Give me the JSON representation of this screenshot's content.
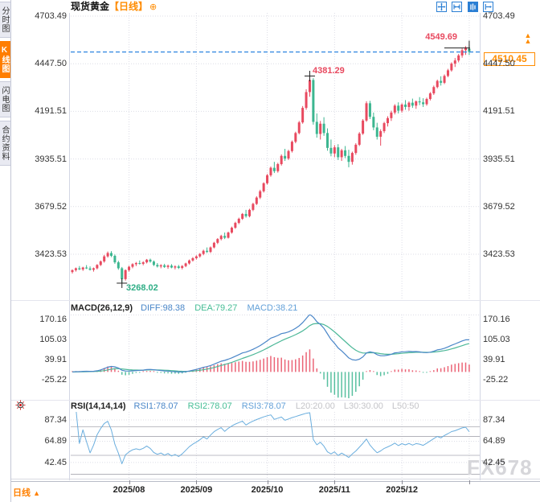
{
  "sidebar": {
    "tabs": [
      {
        "label": "分时图",
        "selected": false
      },
      {
        "label": "K线图",
        "selected": true
      },
      {
        "label": "闪电图",
        "selected": false
      },
      {
        "label": "合约资料",
        "selected": false
      }
    ]
  },
  "header": {
    "title": "现货黄金",
    "period_tag": "【日线】",
    "toolbar_icons": [
      "crosshair",
      "fit-horizontal",
      "candlestick-view",
      "pan-right"
    ]
  },
  "icons": {
    "collapse": "⊕",
    "up_marker": "▲",
    "dropdown_up": "▲"
  },
  "footer": {
    "period_label": "日线"
  },
  "watermark": "FX678",
  "colors": {
    "up": "#e8495f",
    "down": "#3cb690",
    "accent_orange": "#ff8c00",
    "toolbar_blue": "#2b7fd4",
    "last_price_line": "#2e86e0",
    "diff_line": "#4a86c8",
    "dea_line": "#4db898",
    "rsi_line": "#6aaede",
    "grid_dotted": "#dcdde6",
    "rsi_levels": "#a8a8b0"
  },
  "chart_data": {
    "type": "candlestick",
    "title": "现货黄金 日线",
    "x_axis": {
      "labels": [
        "2025/08",
        "2025/09",
        "2025/10",
        "2025/11",
        "2025/12"
      ],
      "day_index": [
        16,
        35,
        55,
        74,
        93
      ],
      "extra_tick_day": 112
    },
    "price_axis": {
      "ticks": [
        4703.49,
        4447.5,
        4191.51,
        3935.51,
        3679.52,
        3423.53
      ]
    },
    "annotations": {
      "recent_high": {
        "text": "4549.69",
        "value": 4549.69,
        "day": 112
      },
      "oct_high": {
        "text": "4381.29",
        "value": 4381.29,
        "day": 67
      },
      "aug_low": {
        "text": "3268.02",
        "value": 3268.02,
        "day": 14
      },
      "last_price": {
        "text": "4510.45",
        "value": 4510.45
      }
    },
    "candles": [
      [
        3328,
        3342,
        3320,
        3338
      ],
      [
        3338,
        3352,
        3330,
        3348
      ],
      [
        3348,
        3360,
        3338,
        3342
      ],
      [
        3342,
        3356,
        3334,
        3352
      ],
      [
        3352,
        3365,
        3344,
        3347
      ],
      [
        3347,
        3358,
        3336,
        3340
      ],
      [
        3340,
        3352,
        3330,
        3348
      ],
      [
        3348,
        3370,
        3342,
        3366
      ],
      [
        3366,
        3390,
        3360,
        3385
      ],
      [
        3385,
        3420,
        3378,
        3412
      ],
      [
        3412,
        3438,
        3405,
        3430
      ],
      [
        3430,
        3440,
        3408,
        3415
      ],
      [
        3415,
        3422,
        3372,
        3380
      ],
      [
        3380,
        3388,
        3340,
        3348
      ],
      [
        3348,
        3355,
        3268.02,
        3290
      ],
      [
        3290,
        3342,
        3282,
        3338
      ],
      [
        3338,
        3362,
        3330,
        3356
      ],
      [
        3356,
        3375,
        3348,
        3370
      ],
      [
        3370,
        3382,
        3360,
        3376
      ],
      [
        3376,
        3390,
        3368,
        3372
      ],
      [
        3372,
        3386,
        3364,
        3380
      ],
      [
        3380,
        3398,
        3374,
        3394
      ],
      [
        3394,
        3400,
        3378,
        3384
      ],
      [
        3384,
        3390,
        3360,
        3366
      ],
      [
        3366,
        3376,
        3352,
        3358
      ],
      [
        3358,
        3370,
        3348,
        3364
      ],
      [
        3364,
        3372,
        3350,
        3355
      ],
      [
        3355,
        3368,
        3345,
        3362
      ],
      [
        3362,
        3370,
        3348,
        3352
      ],
      [
        3352,
        3364,
        3342,
        3358
      ],
      [
        3358,
        3366,
        3344,
        3350
      ],
      [
        3350,
        3365,
        3342,
        3360
      ],
      [
        3360,
        3378,
        3354,
        3374
      ],
      [
        3374,
        3395,
        3368,
        3390
      ],
      [
        3390,
        3408,
        3384,
        3402
      ],
      [
        3402,
        3418,
        3395,
        3412
      ],
      [
        3412,
        3430,
        3405,
        3425
      ],
      [
        3425,
        3448,
        3418,
        3442
      ],
      [
        3442,
        3460,
        3430,
        3436
      ],
      [
        3436,
        3465,
        3430,
        3460
      ],
      [
        3460,
        3490,
        3455,
        3485
      ],
      [
        3485,
        3510,
        3478,
        3505
      ],
      [
        3505,
        3528,
        3498,
        3522
      ],
      [
        3522,
        3540,
        3505,
        3512
      ],
      [
        3512,
        3545,
        3508,
        3540
      ],
      [
        3540,
        3572,
        3534,
        3566
      ],
      [
        3566,
        3598,
        3560,
        3592
      ],
      [
        3592,
        3620,
        3585,
        3614
      ],
      [
        3614,
        3645,
        3608,
        3640
      ],
      [
        3640,
        3662,
        3620,
        3628
      ],
      [
        3628,
        3668,
        3622,
        3662
      ],
      [
        3662,
        3700,
        3655,
        3694
      ],
      [
        3694,
        3735,
        3688,
        3728
      ],
      [
        3728,
        3770,
        3720,
        3762
      ],
      [
        3762,
        3810,
        3755,
        3805
      ],
      [
        3805,
        3855,
        3798,
        3848
      ],
      [
        3848,
        3895,
        3840,
        3888
      ],
      [
        3888,
        3920,
        3860,
        3870
      ],
      [
        3870,
        3915,
        3862,
        3908
      ],
      [
        3908,
        3960,
        3900,
        3952
      ],
      [
        3952,
        3990,
        3925,
        3938
      ],
      [
        3938,
        3985,
        3930,
        3978
      ],
      [
        3978,
        4035,
        3970,
        4028
      ],
      [
        4028,
        4082,
        4020,
        4075
      ],
      [
        4075,
        4140,
        4068,
        4132
      ],
      [
        4132,
        4220,
        4125,
        4210
      ],
      [
        4210,
        4310,
        4200,
        4295
      ],
      [
        4295,
        4381.29,
        4270,
        4360
      ],
      [
        4360,
        4370,
        4120,
        4135
      ],
      [
        4135,
        4180,
        4050,
        4070
      ],
      [
        4070,
        4140,
        4040,
        4125
      ],
      [
        4125,
        4160,
        4060,
        4075
      ],
      [
        4075,
        4100,
        3980,
        3995
      ],
      [
        3995,
        4040,
        3950,
        3965
      ],
      [
        3965,
        4010,
        3945,
        3998
      ],
      [
        3998,
        4015,
        3930,
        3945
      ],
      [
        3945,
        3990,
        3925,
        3982
      ],
      [
        3982,
        4005,
        3940,
        3952
      ],
      [
        3952,
        3985,
        3891,
        3920
      ],
      [
        3920,
        3975,
        3905,
        3968
      ],
      [
        3968,
        4020,
        3958,
        4012
      ],
      [
        4012,
        4080,
        4005,
        4072
      ],
      [
        4072,
        4150,
        4065,
        4142
      ],
      [
        4142,
        4246,
        4135,
        4235
      ],
      [
        4235,
        4248,
        4150,
        4162
      ],
      [
        4162,
        4185,
        4090,
        4105
      ],
      [
        4105,
        4130,
        4040,
        4055
      ],
      [
        4055,
        4095,
        4007,
        4085
      ],
      [
        4085,
        4135,
        4075,
        4128
      ],
      [
        4128,
        4165,
        4110,
        4155
      ],
      [
        4155,
        4195,
        4140,
        4185
      ],
      [
        4185,
        4230,
        4175,
        4222
      ],
      [
        4222,
        4240,
        4180,
        4195
      ],
      [
        4195,
        4235,
        4185,
        4228
      ],
      [
        4228,
        4252,
        4200,
        4215
      ],
      [
        4215,
        4245,
        4195,
        4238
      ],
      [
        4238,
        4260,
        4210,
        4222
      ],
      [
        4222,
        4250,
        4205,
        4245
      ],
      [
        4245,
        4268,
        4225,
        4240
      ],
      [
        4240,
        4262,
        4215,
        4230
      ],
      [
        4230,
        4265,
        4222,
        4258
      ],
      [
        4258,
        4295,
        4250,
        4288
      ],
      [
        4288,
        4330,
        4280,
        4322
      ],
      [
        4322,
        4362,
        4315,
        4355
      ],
      [
        4355,
        4380,
        4330,
        4345
      ],
      [
        4345,
        4390,
        4338,
        4382
      ],
      [
        4382,
        4420,
        4375,
        4412
      ],
      [
        4412,
        4455,
        4405,
        4448
      ],
      [
        4448,
        4478,
        4430,
        4465
      ],
      [
        4465,
        4500,
        4455,
        4492
      ],
      [
        4492,
        4530,
        4480,
        4520
      ],
      [
        4520,
        4542,
        4495,
        4535
      ],
      [
        4528,
        4549.69,
        4494,
        4510.45
      ]
    ],
    "macd": {
      "label": "MACD(26,12,9)",
      "diff_label": "DIFF:98.38",
      "dea_label": "DEA:79.27",
      "macd_label": "MACD:38.21",
      "params": [
        26,
        12,
        9
      ],
      "ticks": [
        170.16,
        105.03,
        39.91,
        -25.22
      ]
    },
    "rsi": {
      "label": "RSI(14,14,14)",
      "rsi1_label": "RSI1:78.07",
      "rsi2_label": "RSI2:78.07",
      "rsi3_label": "RSI3:78.07",
      "l20_label": "L20:20.00",
      "l30_label": "L30:30.00",
      "l50_label": "L50:50",
      "period": 14,
      "ticks": [
        87.34,
        64.89,
        42.45
      ],
      "level_lines": [
        80,
        70,
        50,
        30
      ]
    }
  }
}
